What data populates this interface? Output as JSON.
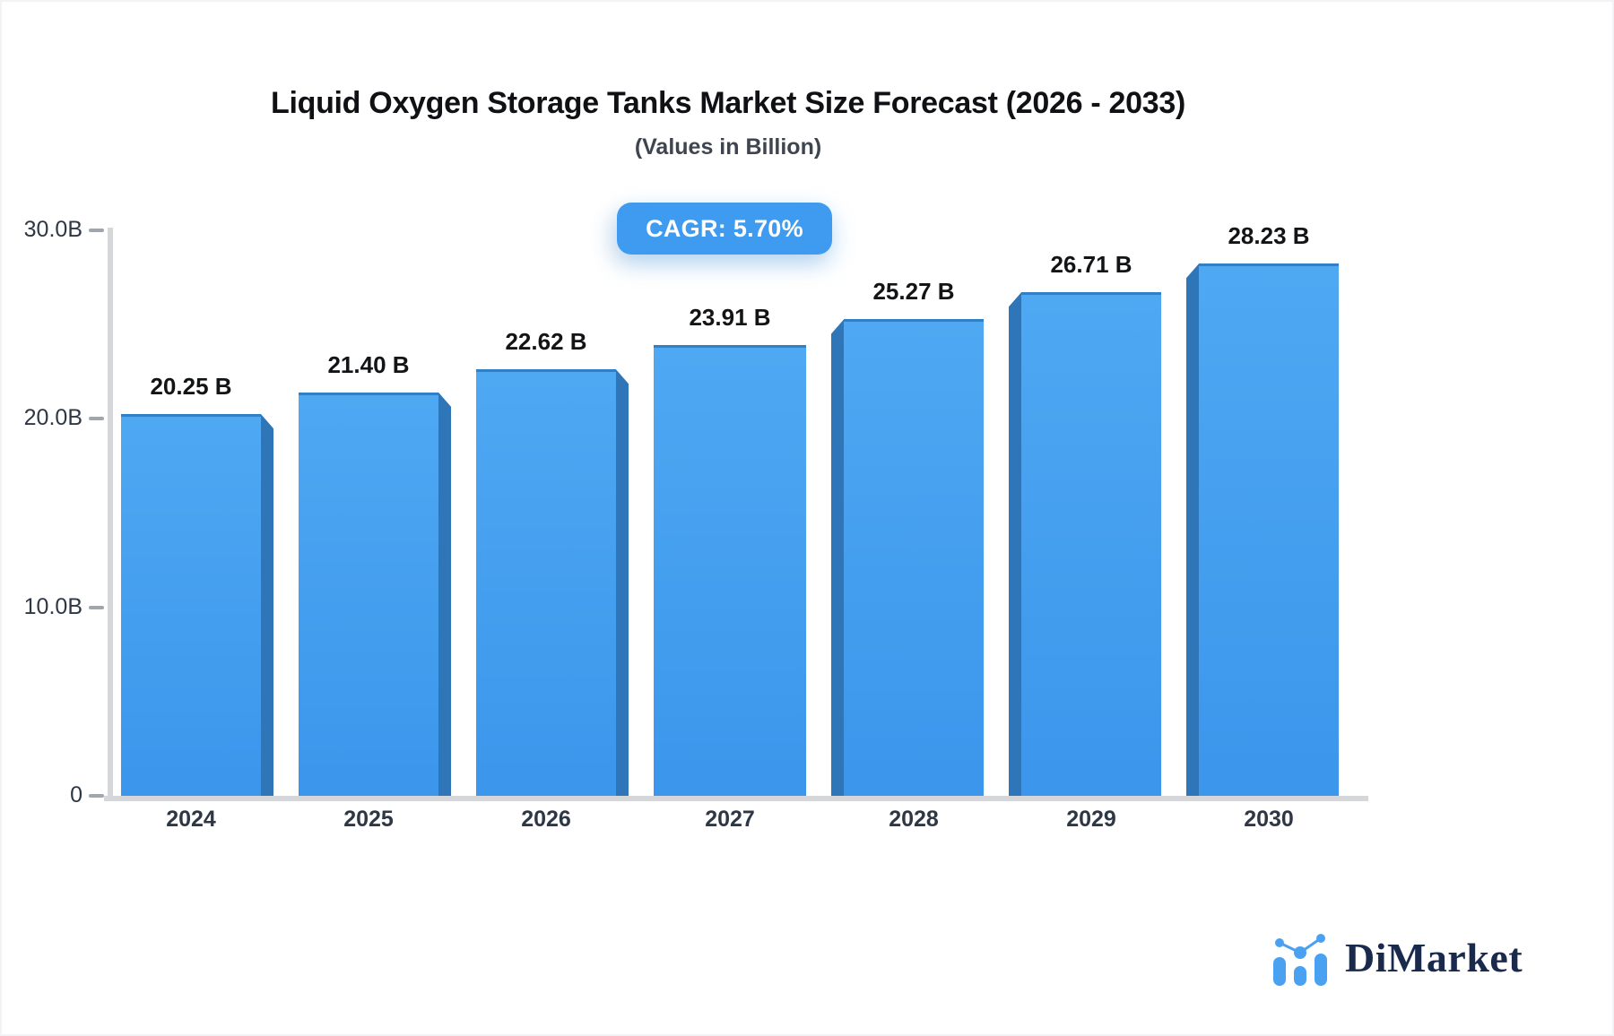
{
  "header": {
    "title": "Liquid Oxygen Storage Tanks Market Size Forecast (2026 - 2033)",
    "subtitle": "(Values in Billion)"
  },
  "cagr": {
    "label": "CAGR: 5.70%",
    "value_percent": 5.7
  },
  "chart_data": {
    "type": "bar",
    "title": "Liquid Oxygen Storage Tanks Market Size Forecast (2026 - 2033)",
    "subtitle": "(Values in Billion)",
    "categories": [
      "2024",
      "2025",
      "2026",
      "2027",
      "2028",
      "2029",
      "2030"
    ],
    "values": [
      20.25,
      21.4,
      22.62,
      23.91,
      25.27,
      26.71,
      28.23
    ],
    "value_labels": [
      "20.25 B",
      "21.40 B",
      "22.62 B",
      "23.91 B",
      "25.27 B",
      "26.71 B",
      "28.23 B"
    ],
    "ylim": [
      0,
      30
    ],
    "yticks": [
      {
        "label": "30.0B",
        "value": 30
      },
      {
        "label": "20.0B",
        "value": 20
      },
      {
        "label": "10.0B",
        "value": 10
      },
      {
        "label": "0",
        "value": 0
      }
    ],
    "xlabel": "",
    "ylabel": "",
    "grid": false,
    "legend": false,
    "style": "3d-bars-light-blue"
  },
  "logo": {
    "text": "DiMarket",
    "icon": "bar-line-chart-icon"
  },
  "colors": {
    "accent": "#3f9bf0",
    "barlight": "#4fa8f2",
    "barbase": "#3b96ec",
    "barside": "#2e76b8",
    "baredge": "#2f80c6",
    "axisline": "#d5d7db",
    "tickdash": "#9fa6ad",
    "axistext": "#2e3745",
    "title": "#101114",
    "subtitle": "#3e4450",
    "logonavy": "#1a2a4c"
  }
}
